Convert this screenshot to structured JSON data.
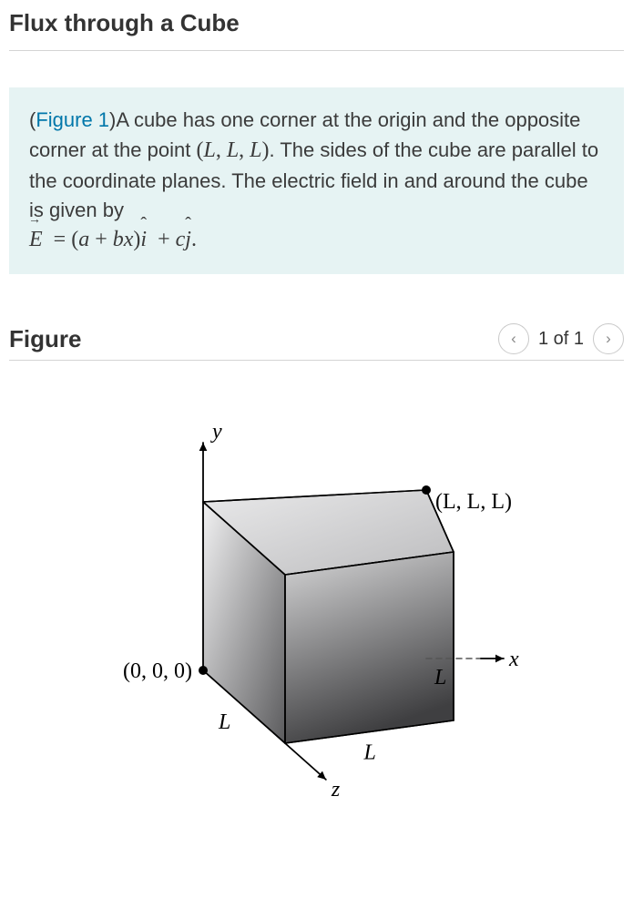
{
  "title": "Flux through a Cube",
  "problem": {
    "figlink": "Figure 1",
    "text_after_link": ")A cube has one corner at the origin and the opposite corner at the point ",
    "point": "(L, L, L)",
    "text2": ". The sides of the cube are parallel to the coordinate planes. The electric field in and around the cube is given by",
    "equation": {
      "lhs_vec": "E",
      "rhs_a": "a",
      "rhs_b": "b",
      "rhs_x": "x",
      "ihat": "i",
      "rhs_c": "c",
      "jhat": "j"
    }
  },
  "figure_section": {
    "heading": "Figure",
    "pager_text": "1 of 1",
    "prev_glyph": "‹",
    "next_glyph": "›"
  },
  "diagram": {
    "type": "3d-cube-axes",
    "labels": {
      "y_axis": "y",
      "x_axis": "x",
      "z_axis": "z",
      "origin": "(0, 0, 0)",
      "far_corner": "(L, L, L)",
      "edge_L_front_bottom": "L",
      "edge_L_right": "L",
      "edge_L_left_bottom": "L"
    },
    "fontsize_axis": 24,
    "fontsize_label": 24,
    "colors": {
      "background": "#ffffff",
      "edge": "#000000",
      "hidden_edge": "#555555",
      "face_top1": "#e9e9ea",
      "face_top2": "#bcbcbe",
      "face_front1": "#f2f2f3",
      "face_front2": "#5b5b5d",
      "face_right1": "#d7d7d8",
      "face_right2": "#3f3f41",
      "point_fill": "#000000"
    },
    "stroke_width": 1.6,
    "hidden_dash": "6,5"
  }
}
